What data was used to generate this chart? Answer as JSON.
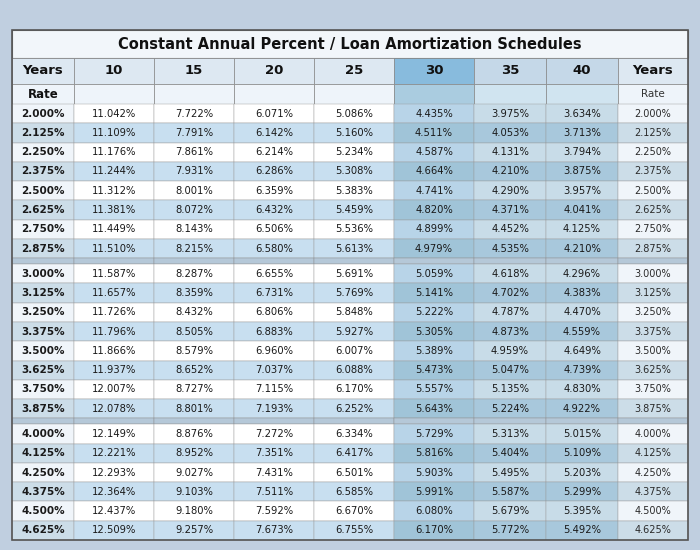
{
  "title": "Constant Annual Percent / Loan Amortization Schedules",
  "col_headers": [
    "Years",
    "10",
    "15",
    "20",
    "25",
    "30",
    "35",
    "40",
    "Years"
  ],
  "sub_header_left": "Rate",
  "sub_header_right": "Rate",
  "rows": [
    [
      "2.000%",
      "11.042%",
      "7.722%",
      "6.071%",
      "5.086%",
      "4.435%",
      "3.975%",
      "3.634%",
      "2.000%"
    ],
    [
      "2.125%",
      "11.109%",
      "7.791%",
      "6.142%",
      "5.160%",
      "4.511%",
      "4.053%",
      "3.713%",
      "2.125%"
    ],
    [
      "2.250%",
      "11.176%",
      "7.861%",
      "6.214%",
      "5.234%",
      "4.587%",
      "4.131%",
      "3.794%",
      "2.250%"
    ],
    [
      "2.375%",
      "11.244%",
      "7.931%",
      "6.286%",
      "5.308%",
      "4.664%",
      "4.210%",
      "3.875%",
      "2.375%"
    ],
    [
      "2.500%",
      "11.312%",
      "8.001%",
      "6.359%",
      "5.383%",
      "4.741%",
      "4.290%",
      "3.957%",
      "2.500%"
    ],
    [
      "2.625%",
      "11.381%",
      "8.072%",
      "6.432%",
      "5.459%",
      "4.820%",
      "4.371%",
      "4.041%",
      "2.625%"
    ],
    [
      "2.750%",
      "11.449%",
      "8.143%",
      "6.506%",
      "5.536%",
      "4.899%",
      "4.452%",
      "4.125%",
      "2.750%"
    ],
    [
      "2.875%",
      "11.510%",
      "8.215%",
      "6.580%",
      "5.613%",
      "4.979%",
      "4.535%",
      "4.210%",
      "2.875%"
    ],
    [
      "3.000%",
      "11.587%",
      "8.287%",
      "6.655%",
      "5.691%",
      "5.059%",
      "4.618%",
      "4.296%",
      "3.000%"
    ],
    [
      "3.125%",
      "11.657%",
      "8.359%",
      "6.731%",
      "5.769%",
      "5.141%",
      "4.702%",
      "4.383%",
      "3.125%"
    ],
    [
      "3.250%",
      "11.726%",
      "8.432%",
      "6.806%",
      "5.848%",
      "5.222%",
      "4.787%",
      "4.470%",
      "3.250%"
    ],
    [
      "3.375%",
      "11.796%",
      "8.505%",
      "6.883%",
      "5.927%",
      "5.305%",
      "4.873%",
      "4.559%",
      "3.375%"
    ],
    [
      "3.500%",
      "11.866%",
      "8.579%",
      "6.960%",
      "6.007%",
      "5.389%",
      "4.959%",
      "4.649%",
      "3.500%"
    ],
    [
      "3.625%",
      "11.937%",
      "8.652%",
      "7.037%",
      "6.088%",
      "5.473%",
      "5.047%",
      "4.739%",
      "3.625%"
    ],
    [
      "3.750%",
      "12.007%",
      "8.727%",
      "7.115%",
      "6.170%",
      "5.557%",
      "5.135%",
      "4.830%",
      "3.750%"
    ],
    [
      "3.875%",
      "12.078%",
      "8.801%",
      "7.193%",
      "6.252%",
      "5.643%",
      "5.224%",
      "4.922%",
      "3.875%"
    ],
    [
      "4.000%",
      "12.149%",
      "8.876%",
      "7.272%",
      "6.334%",
      "5.729%",
      "5.313%",
      "5.015%",
      "4.000%"
    ],
    [
      "4.125%",
      "12.221%",
      "8.952%",
      "7.351%",
      "6.417%",
      "5.816%",
      "5.404%",
      "5.109%",
      "4.125%"
    ],
    [
      "4.250%",
      "12.293%",
      "9.027%",
      "7.431%",
      "6.501%",
      "5.903%",
      "5.495%",
      "5.203%",
      "4.250%"
    ],
    [
      "4.375%",
      "12.364%",
      "9.103%",
      "7.511%",
      "6.585%",
      "5.991%",
      "5.587%",
      "5.299%",
      "4.375%"
    ],
    [
      "4.500%",
      "12.437%",
      "9.180%",
      "7.592%",
      "6.670%",
      "6.080%",
      "5.679%",
      "5.395%",
      "4.500%"
    ],
    [
      "4.625%",
      "12.509%",
      "9.257%",
      "7.673%",
      "6.755%",
      "6.170%",
      "5.772%",
      "5.492%",
      "4.625%"
    ]
  ],
  "group_breaks": [
    8,
    16
  ],
  "outer_bg": "#c0cfe0",
  "table_border": "#555555",
  "title_bg": "#f0f4f8",
  "col_header_bg": "#e8f0f8",
  "col_header_bold_bg": "#c8dff0",
  "subheader_bg": "#ddeeff",
  "row_white": "#ffffff",
  "row_light_blue": "#cce0f0",
  "col30_white": "#b8d4e8",
  "col30_blue": "#a0c4dc",
  "col_last_white": "#e8f0f8",
  "col_last_blue": "#ddeeff",
  "gap_color": "#b0c4d8",
  "text_dark": "#222222",
  "text_medium": "#333333"
}
